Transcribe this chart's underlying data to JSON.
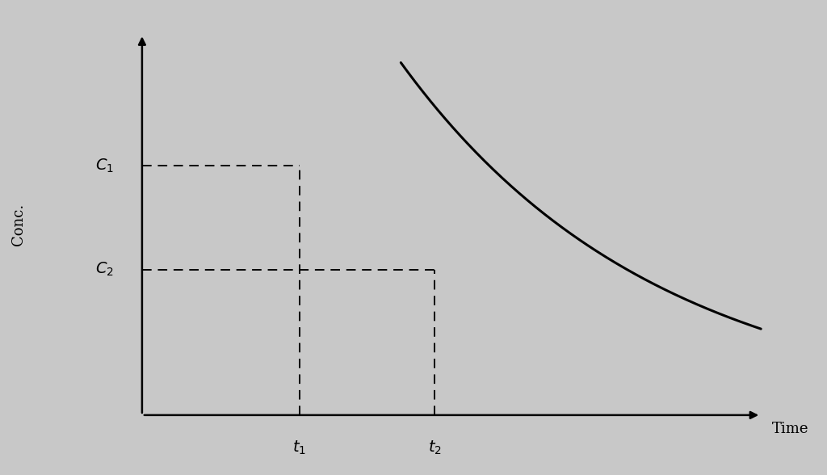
{
  "background_color": "#c8c8c8",
  "curve_color": "#000000",
  "dashed_color": "#000000",
  "C1_label": "$C_1$",
  "C2_label": "$C_2$",
  "t1_label": "$t_1$",
  "t2_label": "$t_2$",
  "xlabel": "Time",
  "ylabel": "Conc.",
  "C1": 0.72,
  "C2": 0.42,
  "t1": 0.28,
  "t2": 0.52,
  "curve_a": 2.8,
  "curve_b": 2.2,
  "x_min": -0.08,
  "x_max": 1.15,
  "y_min": -0.1,
  "y_max": 1.15,
  "figsize": [
    10.24,
    5.88
  ],
  "dpi": 100,
  "fontsize_labels": 14,
  "fontsize_axis": 13,
  "lw_curve": 2.2,
  "lw_axis": 1.8,
  "lw_dash": 1.4
}
